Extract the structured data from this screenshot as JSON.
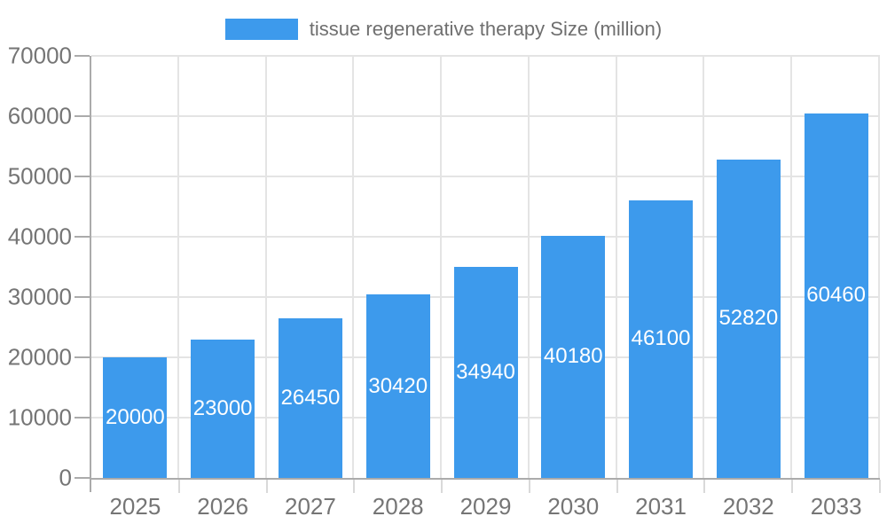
{
  "legend": {
    "label": "tissue regenerative therapy Size (million)"
  },
  "chart_data": {
    "type": "bar",
    "title": "tissue regenerative therapy Size (million)",
    "series_name": "tissue regenerative therapy Size (million)",
    "categories": [
      "2025",
      "2026",
      "2027",
      "2028",
      "2029",
      "2030",
      "2031",
      "2032",
      "2033"
    ],
    "values": [
      20000,
      23000,
      26450,
      30420,
      34940,
      40180,
      46100,
      52820,
      60460
    ],
    "value_labels": [
      "20000",
      "23000",
      "26450",
      "30420",
      "34940",
      "40180",
      "46100",
      "52820",
      "60460"
    ],
    "xlabel": "",
    "ylabel": "",
    "ylim": [
      0,
      70000
    ],
    "ytick_step": 10000,
    "ytick_labels": [
      "0",
      "10000",
      "20000",
      "30000",
      "40000",
      "50000",
      "60000",
      "70000"
    ],
    "grid": true,
    "legend_position": "top-center",
    "colors": {
      "bar": "#3d9aec",
      "value_label": "#ffffff",
      "axis_text": "#757575",
      "axis_line": "#ababab",
      "gridline": "#e4e4e4",
      "background": "#ffffff"
    }
  }
}
